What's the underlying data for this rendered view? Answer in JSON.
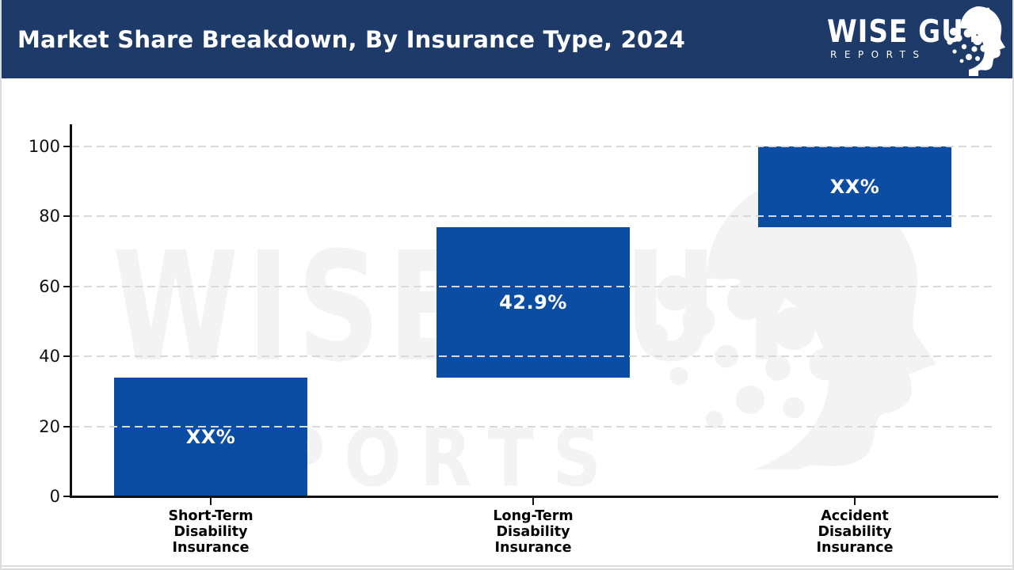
{
  "header": {
    "title": "Market Share Breakdown, By Insurance Type, 2024",
    "logo": {
      "wordmark": "WISE GUY",
      "sub": "REPORTS"
    }
  },
  "watermark": {
    "wordmark": "WISE GUY",
    "sub": "REPORTS"
  },
  "colors": {
    "header_bg": "#1e3a68",
    "bar": "#0b4da2",
    "grid": "#d9d9d9",
    "axis": "#111111",
    "bar_label": "#ffffff",
    "watermark": "#f3f3f3"
  },
  "chart_data": {
    "type": "bar",
    "subtype": "waterfall",
    "title": "Market Share Breakdown, By Insurance Type, 2024",
    "categories": [
      "Short-Term\nDisability\nInsurance",
      "Long-Term\nDisability\nInsurance",
      "Accident\nDisability\nInsurance"
    ],
    "segments": [
      {
        "category": "Short-Term Disability Insurance",
        "start": 0,
        "end": 34,
        "label": "XX%"
      },
      {
        "category": "Long-Term Disability Insurance",
        "start": 34,
        "end": 76.9,
        "label": "42.9%"
      },
      {
        "category": "Accident Disability Insurance",
        "start": 76.9,
        "end": 100,
        "label": "XX%"
      }
    ],
    "ylim": [
      0,
      100
    ],
    "yticks": [
      0,
      20,
      40,
      60,
      80,
      100
    ],
    "xlabel": "",
    "ylabel": "",
    "grid": "dashed-horizontal-over-bars",
    "legend": "none"
  }
}
